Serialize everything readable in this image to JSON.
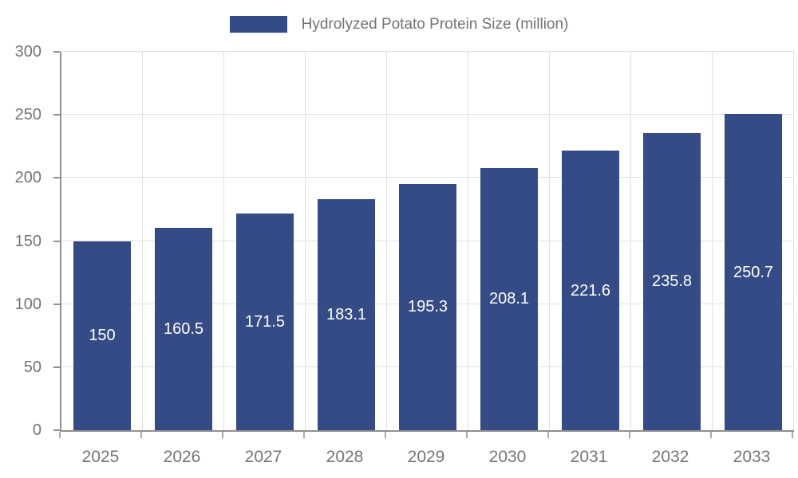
{
  "legend": {
    "label": "Hydrolyzed Potato Protein Size (million)"
  },
  "colors": {
    "bar": "#354b85",
    "bar_label_text": "#ffffff",
    "axis_line": "#909090",
    "grid_line": "#e0e0e0",
    "tick_label_text": "#757575",
    "legend_text": "#737373"
  },
  "chart_data": {
    "type": "bar",
    "title": "Hydrolyzed Potato Protein Size (million)",
    "categories": [
      "2025",
      "2026",
      "2027",
      "2028",
      "2029",
      "2030",
      "2031",
      "2032",
      "2033"
    ],
    "values": [
      150,
      160.5,
      171.5,
      183.1,
      195.3,
      208.1,
      221.6,
      235.8,
      250.7
    ],
    "xlabel": "",
    "ylabel": "",
    "ylim": [
      0,
      300
    ],
    "yticks": [
      0,
      50,
      100,
      150,
      200,
      250,
      300
    ],
    "grid": true,
    "legend_position": "top-center",
    "bar_value_labels": "inside-middle"
  }
}
